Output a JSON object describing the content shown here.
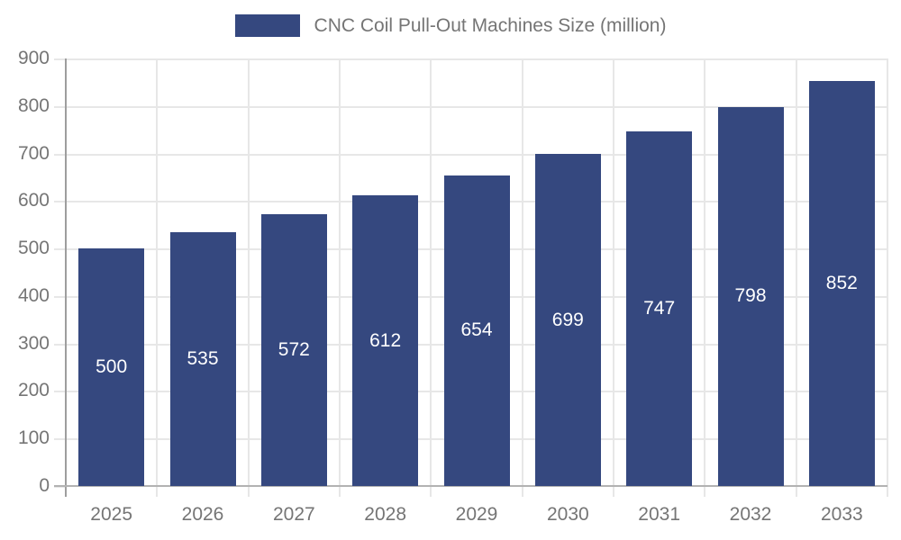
{
  "legend": {
    "label": "CNC Coil Pull-Out Machines Size (million)",
    "swatch_color": "#35487F"
  },
  "chart_data": {
    "type": "bar",
    "title": "CNC Coil Pull-Out Machines Size (million)",
    "categories": [
      "2025",
      "2026",
      "2027",
      "2028",
      "2029",
      "2030",
      "2031",
      "2032",
      "2033"
    ],
    "values": [
      500,
      535,
      572,
      612,
      654,
      699,
      747,
      798,
      852
    ],
    "xlabel": "",
    "ylabel": "",
    "ylim": [
      0,
      900
    ],
    "ytick_step": 100,
    "ytick_labels": [
      "0",
      "100",
      "200",
      "300",
      "400",
      "500",
      "600",
      "700",
      "800",
      "900"
    ],
    "grid": true,
    "legend_position": "top-center",
    "bar_color": "#35487F",
    "value_label_color": "#ffffff",
    "axis_text_color": "#757575",
    "grid_color": "#e7e7e7",
    "axis_line_color": "#9e9e9e"
  }
}
